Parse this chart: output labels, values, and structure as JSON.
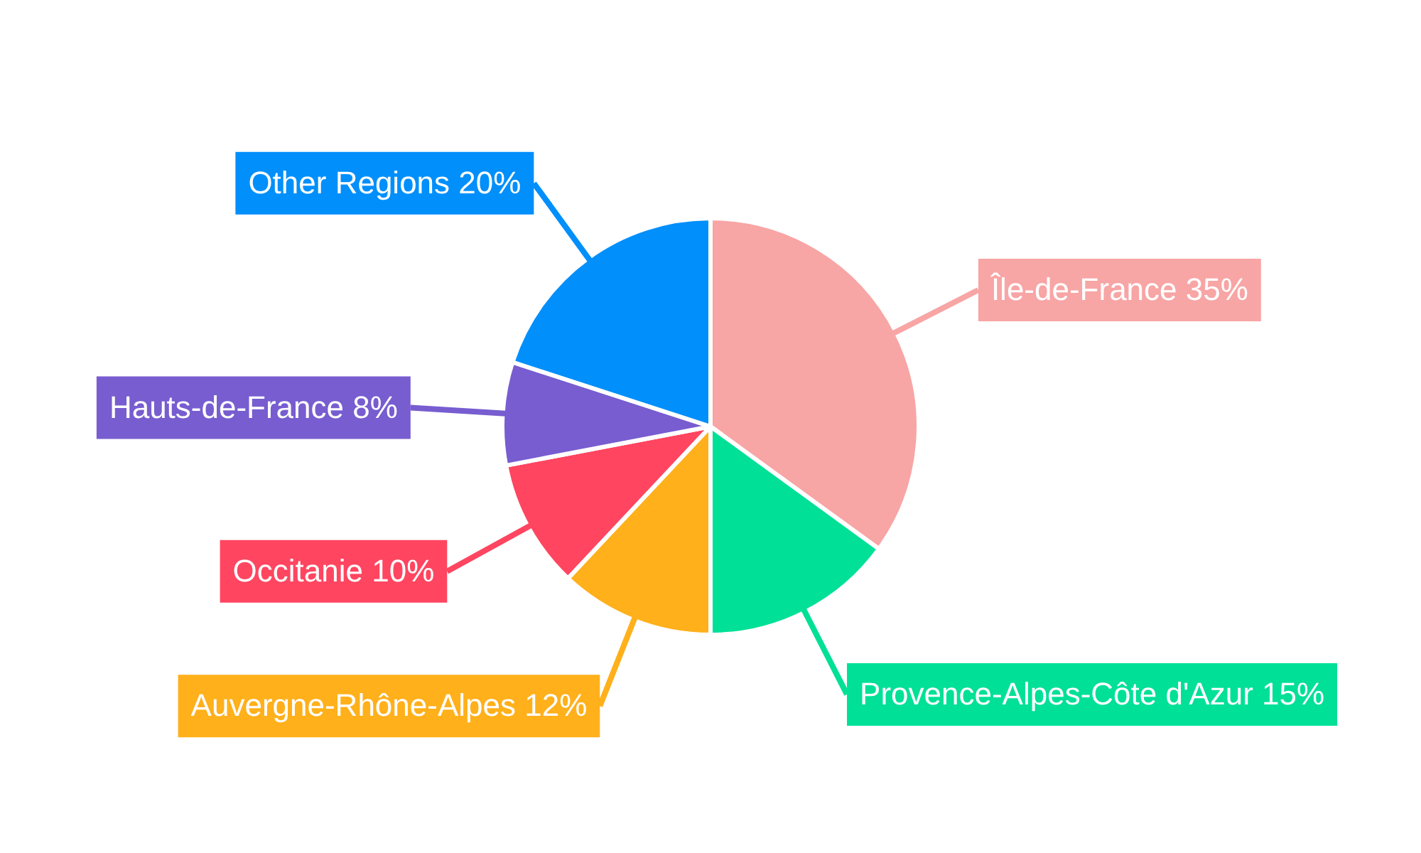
{
  "chart_data": {
    "type": "pie",
    "categories": [
      "Île-de-France",
      "Provence-Alpes-Côte d'Azur",
      "Auvergne-Rhône-Alpes",
      "Occitanie",
      "Hauts-de-France",
      "Other Regions"
    ],
    "values": [
      35,
      15,
      12,
      10,
      8,
      20
    ],
    "value_labels": [
      "35%",
      "15%",
      "12%",
      "10%",
      "8%",
      "20%"
    ],
    "colors": [
      "#f8a5a5",
      "#00e096",
      "#ffb01a",
      "#ff4560",
      "#775dd0",
      "#008ffb"
    ],
    "legend": false
  }
}
